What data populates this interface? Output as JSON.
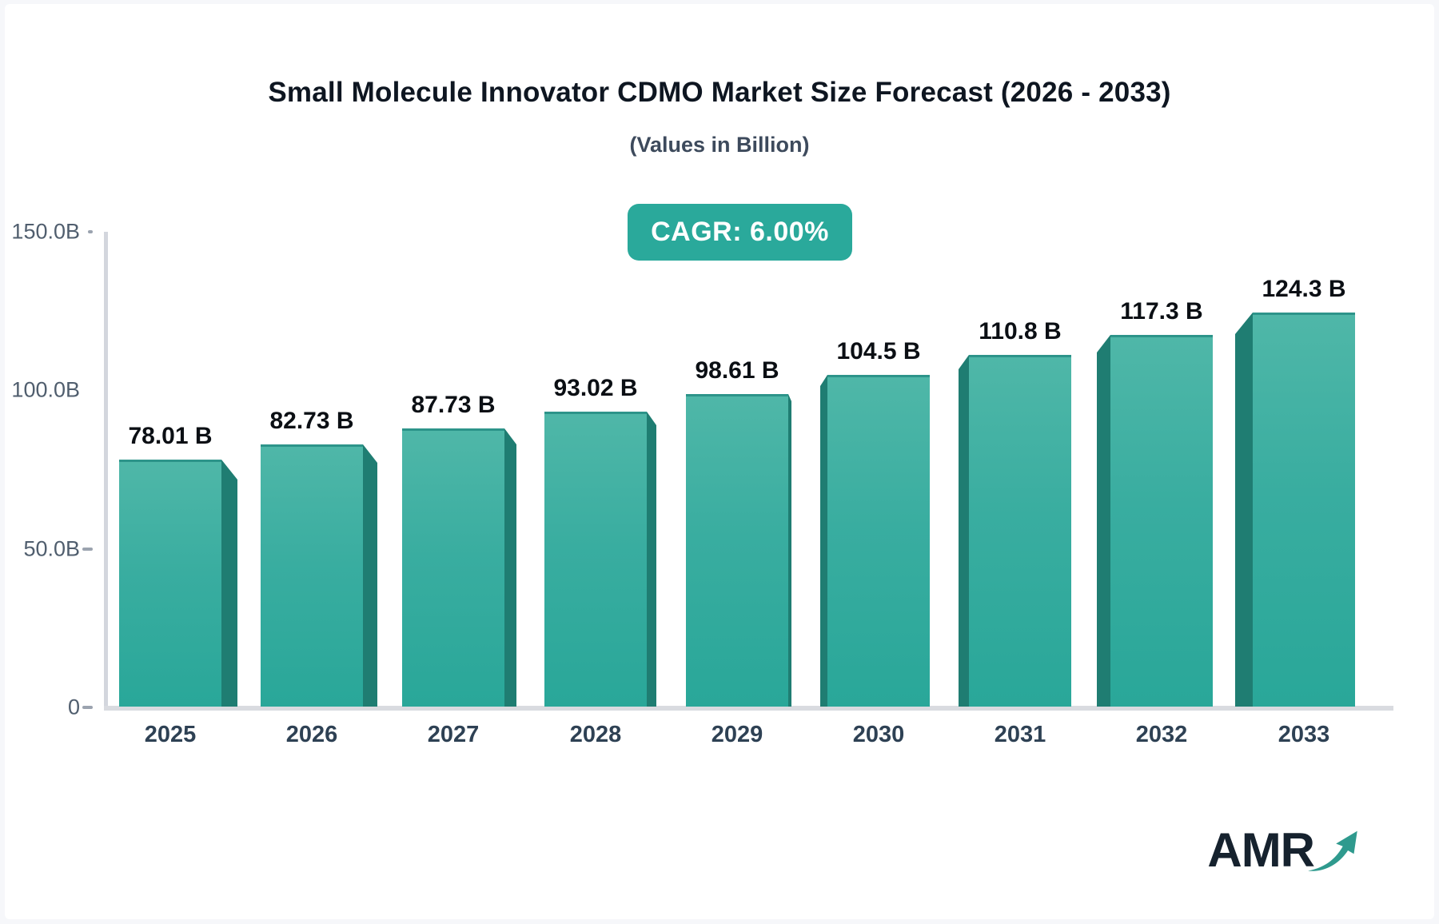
{
  "header": {
    "title": "Small Molecule Innovator CDMO Market Size Forecast (2026 - 2033)",
    "subtitle": "(Values in Billion)",
    "cagr_badge": "CAGR: 6.00%"
  },
  "chart_data": {
    "type": "bar",
    "title": "Small Molecule Innovator CDMO Market Size Forecast (2026 - 2033)",
    "subtitle": "(Values in Billion)",
    "cagr_badge": "CAGR: 6.00%",
    "cagr_value": "6.00%",
    "categories": [
      "2025",
      "2026",
      "2027",
      "2028",
      "2029",
      "2030",
      "2031",
      "2032",
      "2033"
    ],
    "values": [
      78.01,
      82.73,
      87.73,
      93.02,
      98.61,
      104.5,
      110.8,
      117.3,
      124.3
    ],
    "value_labels": [
      "78.01 B",
      "82.73 B",
      "87.73 B",
      "93.02 B",
      "98.61 B",
      "104.5 B",
      "110.8 B",
      "117.3 B",
      "124.3 B"
    ],
    "y_tick_labels": [
      "150.0B",
      "100.0B",
      "50.0B",
      "0"
    ],
    "y_tick_values": [
      150,
      100,
      50,
      0
    ],
    "ylim": [
      0,
      150
    ],
    "xlabel": "",
    "ylabel": "",
    "grid": false,
    "legend": false,
    "colors": {
      "bar_top": "#4fb7a8",
      "bar_mid": "#39ada0",
      "bar_bottom": "#29a799",
      "bar_side": "#1f7d72",
      "bar_top_edge": "#2d948a",
      "badge_background": "#2aa99b",
      "axis_line": "#d6d9df",
      "text_dark": "#0e1621"
    }
  },
  "footer": {
    "logo_text": "AMR",
    "logo_arrow_icon": "growth-arrow-icon"
  }
}
